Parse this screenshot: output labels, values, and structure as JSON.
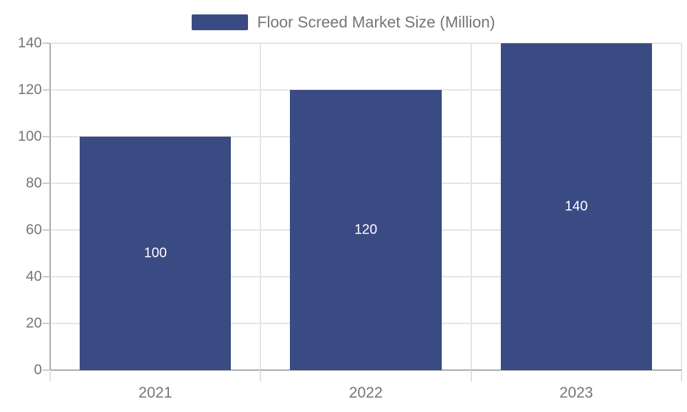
{
  "chart_data": {
    "type": "bar",
    "title": "Floor Screed Market Size (Million)",
    "categories": [
      "2021",
      "2022",
      "2023"
    ],
    "values": [
      100,
      120,
      140
    ],
    "xlabel": "",
    "ylabel": "",
    "ylim": [
      0,
      140
    ],
    "yticks": [
      0,
      20,
      40,
      60,
      80,
      100,
      120,
      140
    ],
    "legend_position": "top-center",
    "grid": true,
    "bar_labels_position": "inside-center",
    "colors": {
      "bar": "#3A4A82",
      "bar_label_text": "#FFFFFF",
      "axis_text": "#757575",
      "grid_line": "#E4E4E4",
      "axis_line": "#A9A9A9",
      "y_tick": "#C9C9C9",
      "x_tick": "#E0E0E0",
      "background": "#FFFFFF"
    }
  }
}
